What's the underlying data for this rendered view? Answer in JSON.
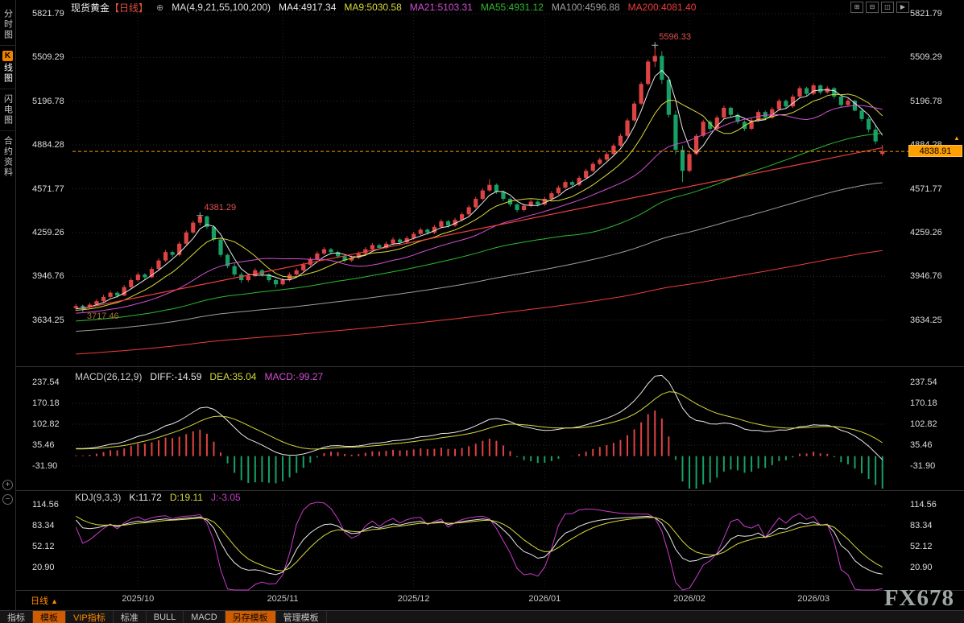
{
  "colors": {
    "up": "#de4343",
    "down": "#17a064",
    "diff": "#e8e8e8",
    "dea": "#d8d83a",
    "macd": "#d24fd2",
    "k": "#e8e8e8",
    "d": "#d8d83a",
    "j": "#c93ac9",
    "accent": "#ff9d00",
    "grid": "#2d2d2d"
  },
  "header": {
    "title": "现货黄金",
    "period_tag": "【日线】",
    "expand_glyph": "⊕",
    "ma_settings": "MA(4,9,21,55,100,200)"
  },
  "window_controls": {
    "icons": [
      {
        "glyph": "⊞"
      },
      {
        "glyph": "⊟"
      },
      {
        "glyph": "◫"
      },
      {
        "glyph": "▶"
      }
    ]
  },
  "sidebar": {
    "items": [
      {
        "label": "分时图"
      },
      {
        "badge": "K",
        "label": "线图",
        "active": true
      },
      {
        "label": "闪电图"
      },
      {
        "label": "合约资料"
      }
    ]
  },
  "footer": {
    "period": "日线",
    "arrow": "▲",
    "watermark": "FX678"
  },
  "toolbar": {
    "items": [
      {
        "label": "指标"
      },
      {
        "label": "模板"
      },
      {
        "label": "VIP指标"
      },
      {
        "label": "标准"
      },
      {
        "label": "BULL"
      },
      {
        "label": "MACD"
      },
      {
        "label": "另存模板"
      },
      {
        "label": "管理模板"
      }
    ]
  },
  "chart_data": {
    "type": "candlestick",
    "symbol": "现货黄金",
    "period": "日线",
    "y_axis_labels": [
      "5821.79",
      "5509.29",
      "5196.78",
      "4884.28",
      "4571.77",
      "4259.26",
      "3946.76",
      "3634.25"
    ],
    "y_range": [
      3334,
      5821.79
    ],
    "x_ticks": [
      {
        "index": 9,
        "label": "2025/10"
      },
      {
        "index": 30,
        "label": "2025/11"
      },
      {
        "index": 49,
        "label": "2025/12"
      },
      {
        "index": 68,
        "label": "2026/01"
      },
      {
        "index": 89,
        "label": "2026/02"
      },
      {
        "index": 107,
        "label": "2026/03"
      }
    ],
    "current_price": {
      "value": 4838.91,
      "label": "4838.91",
      "color": "#ff9d00"
    },
    "annotations": [
      {
        "text": "5596.33",
        "index": 84,
        "price": 5596.33,
        "placement": "above",
        "color": "#e05050"
      },
      {
        "text": "4381.29",
        "index": 18,
        "price": 4381.29,
        "placement": "above",
        "color": "#e05050"
      },
      {
        "text": "3717.46",
        "index": 1,
        "price": 3717.46,
        "placement": "below",
        "color": "#a8703a"
      }
    ],
    "trendlines": [
      {
        "from": {
          "index": 1,
          "price": 3717.46
        },
        "to": {
          "index": 117,
          "price": 4865
        },
        "color": "#ee3f3f"
      }
    ],
    "overlays": {
      "ma": [
        {
          "period": 4,
          "color": "#e8e8e8",
          "label": "MA4:4917.34"
        },
        {
          "period": 9,
          "color": "#d8d83a",
          "label": "MA9:5030.58"
        },
        {
          "period": 21,
          "color": "#d24fd2",
          "label": "MA21:5103.31"
        },
        {
          "period": 55,
          "color": "#2fb92f",
          "label": "MA55:4931.12"
        },
        {
          "period": 100,
          "color": "#9e9e9e",
          "label": "MA100:4596.88"
        },
        {
          "period": 200,
          "color": "#ef3b3b",
          "label": "MA200:4081.40"
        }
      ]
    },
    "prehistory": {
      "bars": 220,
      "from": 3000,
      "to": 3712
    },
    "indicators": {
      "macd": {
        "title": "MACD(26,12,9)",
        "values": [
          {
            "label": "DIFF:-14.59",
            "color": "#e8e8e8"
          },
          {
            "label": "DEA:35.04",
            "color": "#d8d83a"
          },
          {
            "label": "MACD:-99.27",
            "color": "#d24fd2"
          }
        ],
        "axis": [
          "237.54",
          "170.18",
          "102.82",
          "35.46",
          "-31.90"
        ],
        "range": [
          -104.4,
          271.2
        ]
      },
      "kdj": {
        "title": "KDJ(9,3,3)",
        "values": [
          {
            "label": "K:11.72",
            "color": "#e8e8e8"
          },
          {
            "label": "D:19.11",
            "color": "#d8d83a"
          },
          {
            "label": "J:-3.05",
            "color": "#c93ac9"
          }
        ],
        "axis": [
          "114.56",
          "83.34",
          "52.12",
          "20.90"
        ],
        "range": [
          -10.3,
          132.6
        ]
      }
    },
    "ohlc": [
      [
        3720,
        3750,
        3700,
        3735
      ],
      [
        3735,
        3745,
        3717.46,
        3725
      ],
      [
        3725,
        3760,
        3715,
        3745
      ],
      [
        3745,
        3785,
        3735,
        3770
      ],
      [
        3770,
        3815,
        3760,
        3800
      ],
      [
        3800,
        3845,
        3790,
        3830
      ],
      [
        3830,
        3840,
        3795,
        3810
      ],
      [
        3810,
        3885,
        3805,
        3870
      ],
      [
        3870,
        3935,
        3860,
        3920
      ],
      [
        3920,
        3975,
        3910,
        3960
      ],
      [
        3960,
        3970,
        3925,
        3940
      ],
      [
        3940,
        4015,
        3935,
        4000
      ],
      [
        4000,
        4075,
        3990,
        4060
      ],
      [
        4060,
        4135,
        4050,
        4120
      ],
      [
        4120,
        4130,
        4085,
        4100
      ],
      [
        4100,
        4195,
        4090,
        4180
      ],
      [
        4180,
        4275,
        4170,
        4260
      ],
      [
        4260,
        4345,
        4250,
        4330
      ],
      [
        4330,
        4381.29,
        4310,
        4375
      ],
      [
        4375,
        4380,
        4285,
        4300
      ],
      [
        4300,
        4310,
        4195,
        4210
      ],
      [
        4210,
        4220,
        4085,
        4100
      ],
      [
        4100,
        4110,
        4005,
        4020
      ],
      [
        4020,
        4040,
        3945,
        3960
      ],
      [
        3960,
        3975,
        3900,
        3920
      ],
      [
        3920,
        3965,
        3905,
        3950
      ],
      [
        3950,
        4005,
        3940,
        3990
      ],
      [
        3990,
        4000,
        3945,
        3960
      ],
      [
        3960,
        3970,
        3905,
        3920
      ],
      [
        3920,
        3930,
        3868,
        3890
      ],
      [
        3890,
        3935,
        3880,
        3920
      ],
      [
        3920,
        3975,
        3910,
        3960
      ],
      [
        3960,
        4005,
        3950,
        3990
      ],
      [
        3990,
        4045,
        3980,
        4030
      ],
      [
        4030,
        4085,
        4020,
        4070
      ],
      [
        4070,
        4125,
        4060,
        4110
      ],
      [
        4110,
        4155,
        4100,
        4140
      ],
      [
        4140,
        4150,
        4105,
        4120
      ],
      [
        4120,
        4130,
        4075,
        4090
      ],
      [
        4090,
        4100,
        4045,
        4060
      ],
      [
        4060,
        4095,
        4050,
        4080
      ],
      [
        4080,
        4125,
        4070,
        4110
      ],
      [
        4110,
        4155,
        4100,
        4140
      ],
      [
        4140,
        4185,
        4130,
        4170
      ],
      [
        4170,
        4180,
        4135,
        4150
      ],
      [
        4150,
        4195,
        4140,
        4180
      ],
      [
        4180,
        4225,
        4170,
        4210
      ],
      [
        4210,
        4220,
        4175,
        4190
      ],
      [
        4190,
        4235,
        4180,
        4220
      ],
      [
        4220,
        4265,
        4210,
        4250
      ],
      [
        4250,
        4295,
        4240,
        4280
      ],
      [
        4280,
        4290,
        4245,
        4260
      ],
      [
        4260,
        4315,
        4250,
        4300
      ],
      [
        4300,
        4355,
        4290,
        4340
      ],
      [
        4340,
        4350,
        4295,
        4310
      ],
      [
        4310,
        4365,
        4300,
        4350
      ],
      [
        4350,
        4405,
        4340,
        4390
      ],
      [
        4390,
        4455,
        4380,
        4440
      ],
      [
        4440,
        4515,
        4430,
        4500
      ],
      [
        4500,
        4575,
        4490,
        4560
      ],
      [
        4560,
        4640,
        4550,
        4600
      ],
      [
        4600,
        4610,
        4535,
        4550
      ],
      [
        4550,
        4560,
        4485,
        4500
      ],
      [
        4500,
        4510,
        4445,
        4460
      ],
      [
        4460,
        4470,
        4405,
        4420
      ],
      [
        4420,
        4465,
        4410,
        4450
      ],
      [
        4450,
        4495,
        4440,
        4480
      ],
      [
        4480,
        4490,
        4445,
        4460
      ],
      [
        4460,
        4515,
        4450,
        4500
      ],
      [
        4500,
        4555,
        4490,
        4540
      ],
      [
        4540,
        4595,
        4530,
        4580
      ],
      [
        4580,
        4635,
        4570,
        4620
      ],
      [
        4620,
        4630,
        4585,
        4600
      ],
      [
        4600,
        4665,
        4590,
        4650
      ],
      [
        4650,
        4715,
        4640,
        4700
      ],
      [
        4700,
        4765,
        4690,
        4750
      ],
      [
        4750,
        4795,
        4740,
        4780
      ],
      [
        4780,
        4835,
        4770,
        4820
      ],
      [
        4820,
        4895,
        4810,
        4880
      ],
      [
        4880,
        4965,
        4870,
        4950
      ],
      [
        4950,
        5075,
        4940,
        5060
      ],
      [
        5060,
        5195,
        5050,
        5180
      ],
      [
        5180,
        5335,
        5170,
        5320
      ],
      [
        5320,
        5495,
        5310,
        5480
      ],
      [
        5480,
        5596.33,
        5440,
        5520
      ],
      [
        5520,
        5555,
        5320,
        5350
      ],
      [
        5350,
        5370,
        5080,
        5100
      ],
      [
        5100,
        5130,
        4820,
        4850
      ],
      [
        4850,
        4880,
        4620,
        4700
      ],
      [
        4700,
        4840,
        4690,
        4820
      ],
      [
        4820,
        4965,
        4810,
        4950
      ],
      [
        4950,
        5065,
        4940,
        5050
      ],
      [
        5050,
        5062,
        4985,
        5000
      ],
      [
        5000,
        5095,
        4990,
        5080
      ],
      [
        5080,
        5165,
        5070,
        5150
      ],
      [
        5150,
        5158,
        5082,
        5100
      ],
      [
        5100,
        5112,
        5035,
        5050
      ],
      [
        5050,
        5060,
        4985,
        5000
      ],
      [
        5000,
        5075,
        4992,
        5060
      ],
      [
        5060,
        5135,
        5050,
        5120
      ],
      [
        5120,
        5130,
        5062,
        5080
      ],
      [
        5080,
        5155,
        5070,
        5140
      ],
      [
        5140,
        5215,
        5130,
        5200
      ],
      [
        5200,
        5210,
        5145,
        5160
      ],
      [
        5160,
        5245,
        5150,
        5230
      ],
      [
        5230,
        5305,
        5220,
        5290
      ],
      [
        5290,
        5300,
        5235,
        5250
      ],
      [
        5250,
        5325,
        5240,
        5310
      ],
      [
        5310,
        5318,
        5245,
        5260
      ],
      [
        5260,
        5305,
        5250,
        5290
      ],
      [
        5290,
        5298,
        5215,
        5230
      ],
      [
        5230,
        5240,
        5155,
        5170
      ],
      [
        5170,
        5215,
        5160,
        5200
      ],
      [
        5200,
        5208,
        5125,
        5130
      ],
      [
        5130,
        5150,
        5052,
        5070
      ],
      [
        5070,
        5085,
        4975,
        4995
      ],
      [
        4995,
        5030,
        4890,
        4910
      ],
      [
        4820,
        4885,
        4805,
        4838.91
      ]
    ]
  }
}
